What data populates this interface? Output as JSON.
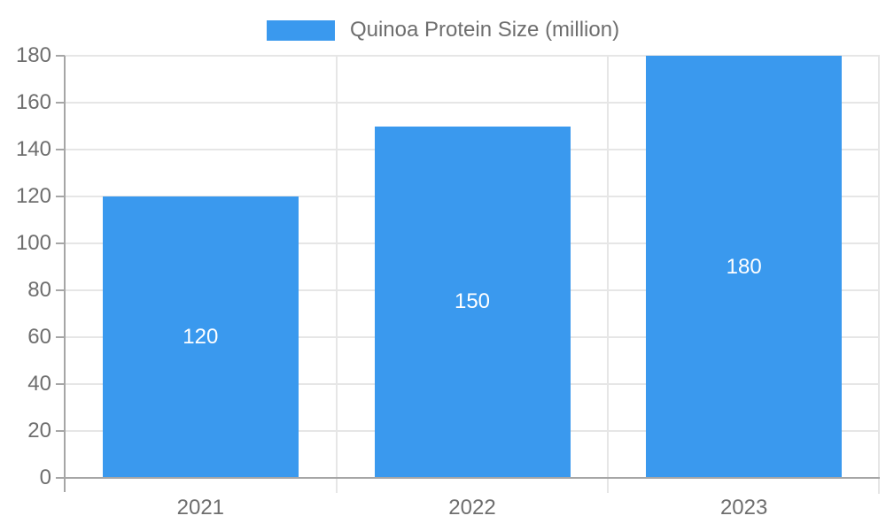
{
  "chart_data": {
    "type": "bar",
    "title": "",
    "legend_label": "Quinoa Protein Size (million)",
    "legend_position": "top-center",
    "categories": [
      "2021",
      "2022",
      "2023"
    ],
    "values": [
      120,
      150,
      180
    ],
    "bar_value_labels": [
      "120",
      "150",
      "180"
    ],
    "xlabel": "",
    "ylabel": "",
    "ylim": [
      0,
      180
    ],
    "y_ticks": [
      0,
      20,
      40,
      60,
      80,
      100,
      120,
      140,
      160,
      180
    ],
    "grid": true,
    "colors": {
      "bar": "#3A99EE",
      "bar_value_text": "#ffffff",
      "gridline": "#e6e6e6",
      "axis_line": "#a6a6a6",
      "tick_text": "#6e6e6e",
      "legend_text": "#6e6e6e",
      "background": "#ffffff"
    }
  }
}
